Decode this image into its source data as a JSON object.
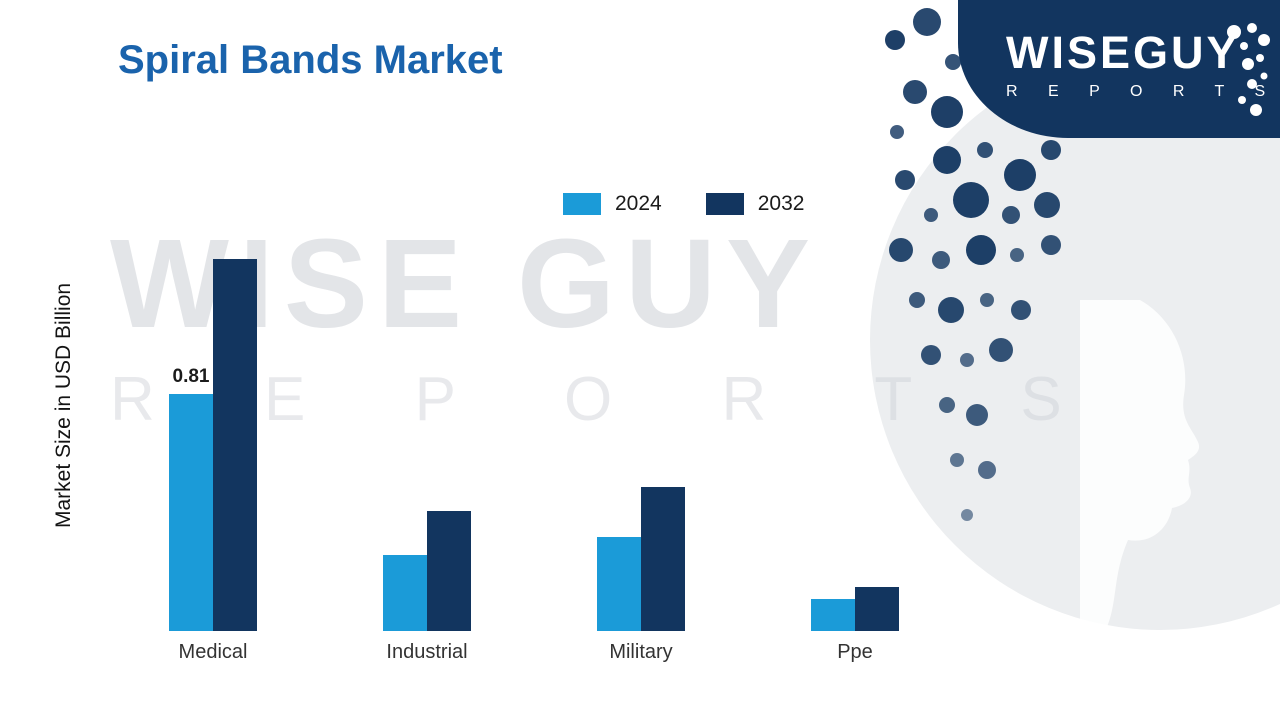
{
  "title": "Spiral Bands Market",
  "logo": {
    "name": "WISEGUY",
    "sub": "R E P O R T S"
  },
  "watermark": {
    "line1": "WISE GUY",
    "line2": "R E P O R T S"
  },
  "chart_data": {
    "type": "bar",
    "title": "Spiral Bands Market",
    "ylabel": "Market Size in USD Billion",
    "ylim": [
      0,
      1.4
    ],
    "categories": [
      "Medical",
      "Industrial",
      "Military",
      "Ppe"
    ],
    "series": [
      {
        "name": "2024",
        "color": "#1b9bd8",
        "values": [
          0.81,
          0.26,
          0.32,
          0.11
        ]
      },
      {
        "name": "2032",
        "color": "#12355f",
        "values": [
          1.27,
          0.41,
          0.49,
          0.15
        ]
      }
    ],
    "annotations": [
      {
        "series": "2024",
        "category": "Medical",
        "text": "0.81"
      }
    ],
    "legend_position": "top-center",
    "grid": false,
    "axes_visible": false
  },
  "colors": {
    "title": "#1a63ac",
    "series_2024": "#1b9bd8",
    "series_2032": "#12355f",
    "watermark": "#cdd0d6",
    "background_circle": "#eceef0",
    "logo_background": "#12355f"
  }
}
